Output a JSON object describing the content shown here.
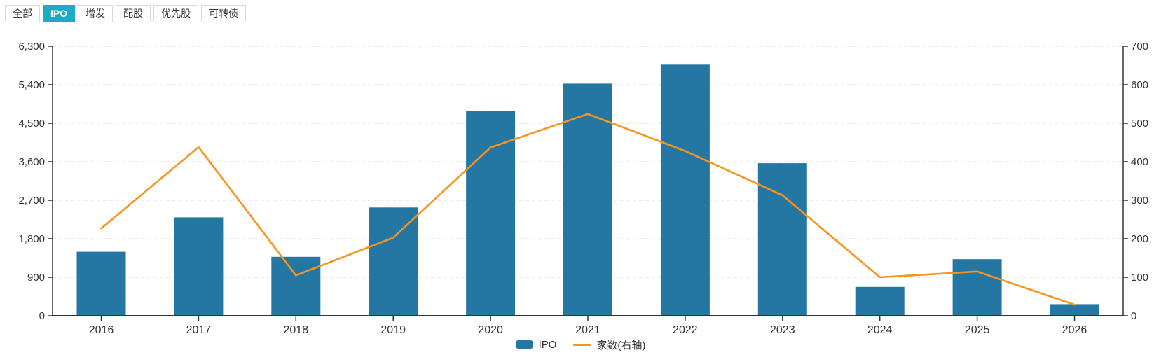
{
  "tabs": [
    {
      "name": "tab-all",
      "label": "全部",
      "active": false
    },
    {
      "name": "tab-ipo",
      "label": "IPO",
      "active": true
    },
    {
      "name": "tab-secondary-offering",
      "label": "增发",
      "active": false
    },
    {
      "name": "tab-rights-issue",
      "label": "配股",
      "active": false
    },
    {
      "name": "tab-preferred-stock",
      "label": "优先股",
      "active": false
    },
    {
      "name": "tab-convertible-bond",
      "label": "可转债",
      "active": false
    }
  ],
  "colors": {
    "bar": "#2577a3",
    "line": "#f7941e",
    "tab_active_bg": "#1cabc4",
    "axis": "#333333",
    "grid": "#e0e0e0",
    "label": "#333333"
  },
  "legend": [
    {
      "name": "legend-ipo",
      "label": "IPO",
      "swatch": "bar"
    },
    {
      "name": "legend-companies",
      "label": "家数(右轴)",
      "swatch": "line"
    }
  ],
  "chart_data": {
    "type": "bar",
    "categories": [
      "2016",
      "2017",
      "2018",
      "2019",
      "2020",
      "2021",
      "2022",
      "2023",
      "2024",
      "2025",
      "2026"
    ],
    "series": [
      {
        "name": "IPO",
        "type": "bar",
        "axis": "left",
        "values": [
          1496,
          2301,
          1378,
          2532,
          4793,
          5426,
          5869,
          3565,
          674,
          1322,
          272
        ]
      },
      {
        "name": "家数(右轴)",
        "type": "line",
        "axis": "right",
        "values": [
          227,
          438,
          105,
          203,
          437,
          524,
          428,
          313,
          100,
          115,
          29
        ]
      }
    ],
    "title": "",
    "xlabel": "",
    "ylabel_left": "",
    "ylabel_right": "",
    "left_axis": {
      "min": 0,
      "max": 6300,
      "step": 900,
      "tick_labels": [
        "0",
        "900",
        "1,800",
        "2,700",
        "3,600",
        "4,500",
        "5,400",
        "6,300"
      ]
    },
    "right_axis": {
      "min": 0,
      "max": 700,
      "step": 100,
      "tick_labels": [
        "0",
        "100",
        "200",
        "300",
        "400",
        "500",
        "600",
        "700"
      ]
    },
    "grid": "horizontal-dashed",
    "legend_position": "bottom-center"
  }
}
